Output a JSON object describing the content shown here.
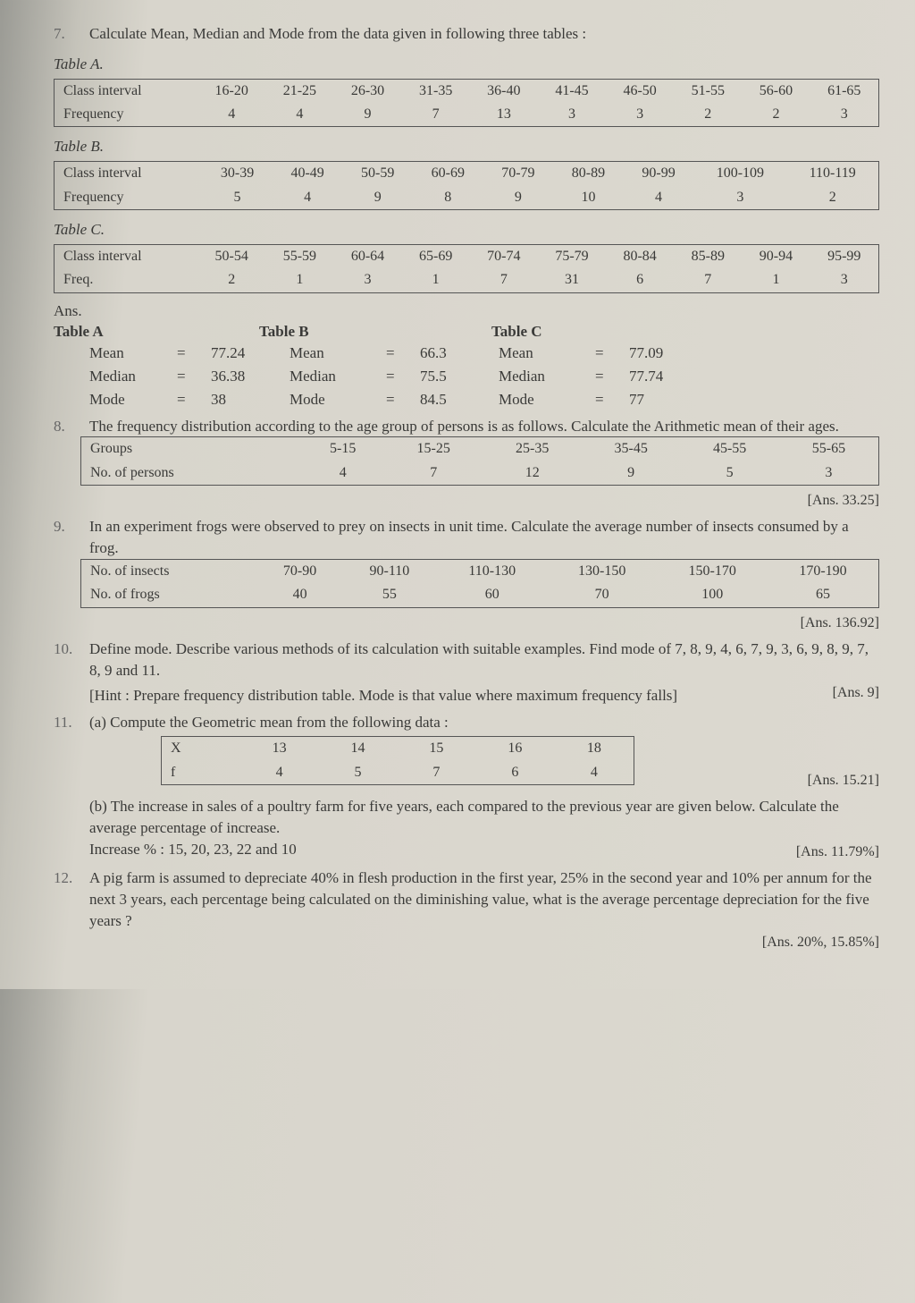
{
  "partial_top": "",
  "q7": {
    "num": "7.",
    "text": "Calculate Mean, Median and Mode from the data given in following three tables :",
    "tableA": {
      "title": "Table A.",
      "rowlabels": [
        "Class interval",
        "Frequency"
      ],
      "cols": [
        "16-20",
        "21-25",
        "26-30",
        "31-35",
        "36-40",
        "41-45",
        "46-50",
        "51-55",
        "56-60",
        "61-65"
      ],
      "freq": [
        "4",
        "4",
        "9",
        "7",
        "13",
        "3",
        "3",
        "2",
        "2",
        "3"
      ]
    },
    "tableB": {
      "title": "Table B.",
      "rowlabels": [
        "Class interval",
        "Frequency"
      ],
      "cols": [
        "30-39",
        "40-49",
        "50-59",
        "60-69",
        "70-79",
        "80-89",
        "90-99",
        "100-109",
        "110-119"
      ],
      "freq": [
        "5",
        "4",
        "9",
        "8",
        "9",
        "10",
        "4",
        "3",
        "2"
      ]
    },
    "tableC": {
      "title": "Table C.",
      "rowlabels": [
        "Class interval",
        "Freq."
      ],
      "cols": [
        "50-54",
        "55-59",
        "60-64",
        "65-69",
        "70-74",
        "75-79",
        "80-84",
        "85-89",
        "90-94",
        "95-99"
      ],
      "freq": [
        "2",
        "1",
        "3",
        "1",
        "7",
        "31",
        "6",
        "7",
        "1",
        "3"
      ]
    },
    "ans_label": "Ans.",
    "ans": {
      "headA": "Table A",
      "headB": "Table B",
      "headC": "Table C",
      "r1": [
        "Mean",
        "=",
        "77.24",
        "Mean",
        "=",
        "66.3",
        "Mean",
        "=",
        "77.09"
      ],
      "r2": [
        "Median",
        "=",
        "36.38",
        "Median",
        "=",
        "75.5",
        "Median",
        "=",
        "77.74"
      ],
      "r3": [
        "Mode",
        "=",
        "38",
        "Mode",
        "=",
        "84.5",
        "Mode",
        "=",
        "77"
      ]
    }
  },
  "q8": {
    "num": "8.",
    "text": "The frequency distribution according to the age group of persons is as follows. Calculate the Arithmetic mean of their ages.",
    "rowlabels": [
      "Groups",
      "No. of persons"
    ],
    "cols": [
      "5-15",
      "15-25",
      "25-35",
      "35-45",
      "45-55",
      "55-65"
    ],
    "freq": [
      "4",
      "7",
      "12",
      "9",
      "5",
      "3"
    ],
    "ans": "[Ans. 33.25]"
  },
  "q9": {
    "num": "9.",
    "text": "In an experiment frogs were observed to prey on insects in unit time. Calculate the average number of insects consumed by a frog.",
    "rowlabels": [
      "No. of insects",
      "No. of frogs"
    ],
    "cols": [
      "70-90",
      "90-110",
      "110-130",
      "130-150",
      "150-170",
      "170-190"
    ],
    "freq": [
      "40",
      "55",
      "60",
      "70",
      "100",
      "65"
    ],
    "ans": "[Ans. 136.92]"
  },
  "q10": {
    "num": "10.",
    "text": "Define mode. Describe various methods of its calculation with suitable examples. Find mode of 7, 8, 9, 4, 6, 7, 9, 3, 6, 9, 8, 9, 7, 8, 9 and 11.",
    "hint": "[Hint : Prepare frequency distribution table. Mode is that value where maximum frequency falls]",
    "ans": "[Ans. 9]"
  },
  "q11": {
    "num": "11.",
    "a_text": "(a) Compute the Geometric mean from the following data :",
    "rowlabels": [
      "X",
      "f"
    ],
    "cols": [
      "13",
      "14",
      "15",
      "16",
      "18"
    ],
    "freq": [
      "4",
      "5",
      "7",
      "6",
      "4"
    ],
    "a_ans": "[Ans. 15.21]",
    "b_text": "(b) The increase in sales of a poultry farm for five years, each compared to the previous year are given below. Calculate the average percentage of increase.",
    "b_line": "Increase % : 15, 20, 23, 22 and 10",
    "b_ans": "[Ans. 11.79%]"
  },
  "q12": {
    "num": "12.",
    "text": "A pig farm is assumed to depreciate 40% in flesh production in the first year, 25% in the second year and 10% per annum for the next 3 years, each percentage being calculated on the diminishing value, what is the average percentage depreciation for the five years ?",
    "ans": "[Ans. 20%, 15.85%]"
  }
}
